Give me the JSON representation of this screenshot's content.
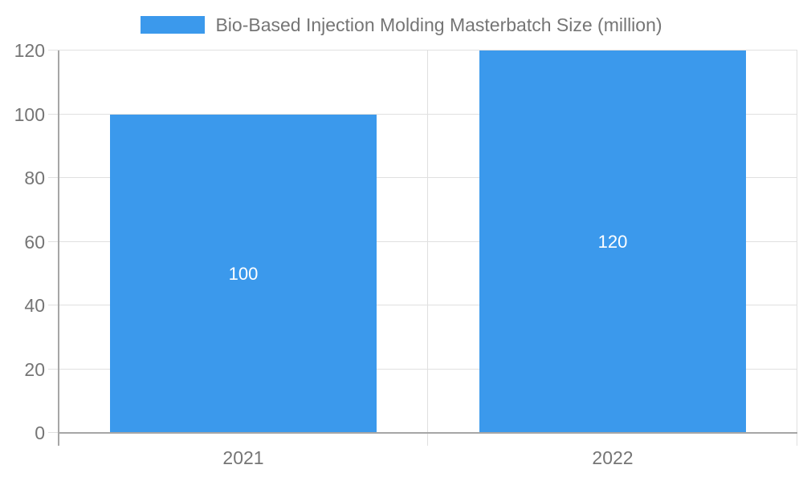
{
  "chart_data": {
    "type": "bar",
    "title": "Bio-Based Injection Molding Masterbatch Size (million)",
    "categories": [
      "2021",
      "2022"
    ],
    "values": [
      100,
      120
    ],
    "bar_labels": [
      "100",
      "120"
    ],
    "ylim": [
      0,
      120
    ],
    "yticks": [
      0,
      20,
      40,
      60,
      80,
      100,
      120
    ],
    "grid": true,
    "legend_position": "top",
    "colors": {
      "bar": "#3B99EC",
      "bar_label": "#FFFFFF",
      "axis_text": "#757575",
      "axis_line": "#A6A6A6",
      "gridline": "#E0E0E0"
    }
  }
}
